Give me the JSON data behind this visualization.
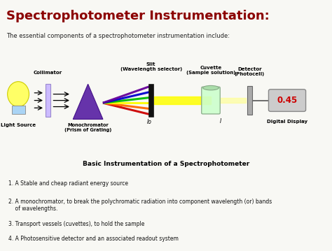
{
  "title": "Spectrophotometer Instrumentation:",
  "subtitle": "The essential components of a spectrophotometer instrumentation include:",
  "diagram_title": "Basic Instrumentation of a Spectrophotometer",
  "title_color": "#8B0000",
  "bg_color": "#f8f8f4",
  "points": [
    "1. A Stable and cheap radiant energy source",
    "2. A monochromator, to break the polychromatic radiation into component wavelength (or) bands\n    of wavelengths.",
    "3. Transport vessels (cuvettes), to hold the sample",
    "4. A Photosensitive detector and an associated readout system"
  ],
  "labels": {
    "light_source": "Light Source",
    "collimator": "Collimator",
    "monochromator": "Monochromator\n(Prism of Grating)",
    "slit": "Slit\n(Wavelength selector)",
    "cuvette": "Cuvette\n(Sample solution)",
    "detector": "Detector\n(Photocell)",
    "display": "Digital Display",
    "display_value": "0.45",
    "Io": "Io",
    "I": "I"
  }
}
